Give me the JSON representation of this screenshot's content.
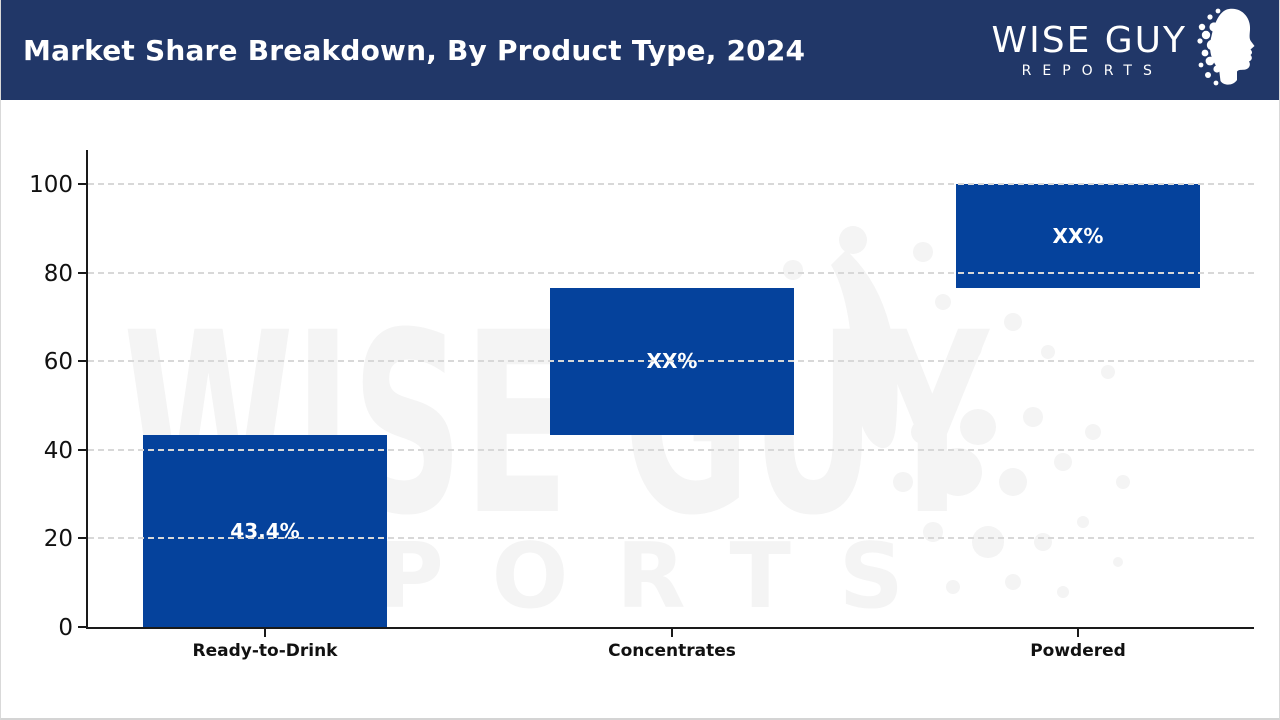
{
  "header": {
    "title": "Market Share Breakdown, By Product Type, 2024",
    "logo": {
      "brand_top": "WISE GUY",
      "brand_bottom": "REPORTS"
    }
  },
  "watermark": {
    "brand_top": "WISE GUY",
    "brand_bottom": "REPORTS"
  },
  "chart_data": {
    "type": "bar",
    "variant": "floating-waterfall",
    "title": "Market Share Breakdown, By Product Type, 2024",
    "categories": [
      "Ready-to-Drink",
      "Concentrates",
      "Powdered"
    ],
    "series": [
      {
        "name": "Market share (%)",
        "segments": [
          {
            "category": "Ready-to-Drink",
            "start": 0,
            "end": 43.4,
            "label": "43.4%"
          },
          {
            "category": "Concentrates",
            "start": 43.4,
            "end": 76.6,
            "label": "XX%"
          },
          {
            "category": "Powdered",
            "start": 76.6,
            "end": 100,
            "label": "XX%"
          }
        ]
      }
    ],
    "xlabel": "",
    "ylabel": "",
    "ylim": [
      0,
      107
    ],
    "yticks": [
      0,
      20,
      40,
      60,
      80,
      100
    ],
    "grid": "horizontal-dashed-above-bars",
    "legend": "none",
    "bar_color": "#05429c",
    "bar_label_color": "#ffffff"
  },
  "colors": {
    "header_bg": "#213768",
    "bar": "#05429c",
    "grid": "#d8d8d8",
    "axis": "#1a1a1a",
    "watermark": "#f4f4f4"
  }
}
